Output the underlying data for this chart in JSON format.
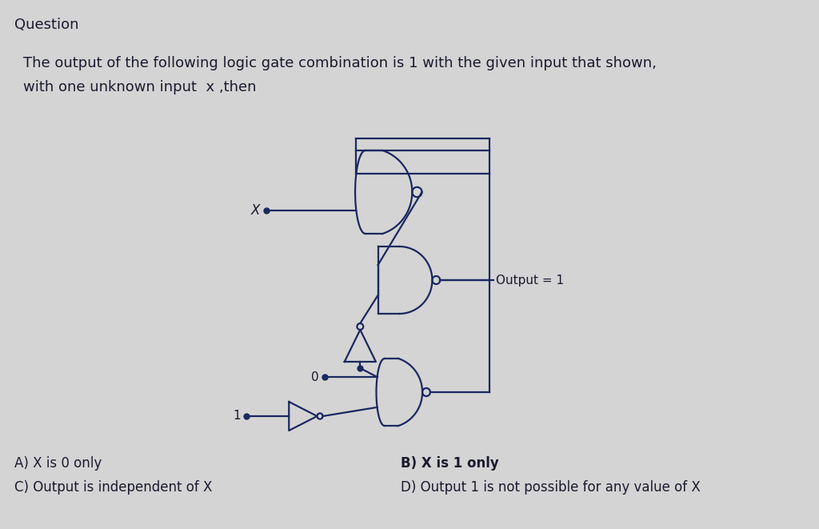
{
  "bg_color": "#d4d4d4",
  "title_text": "Question",
  "question_line1": "The output of the following logic gate combination is 1 with the given input that shown,",
  "question_line2": "with one unknown input  x ,then",
  "answer_A": "A) X is 0 only",
  "answer_B": "B) X is 1 only",
  "answer_C": "C) Output is independent of X",
  "answer_D": "D) Output 1 is not possible for any value of X",
  "gate_color": "#1a2860",
  "text_color": "#1a1a2e",
  "output_label": "Output = 1",
  "input_x_label": "X",
  "input_0_label": "0",
  "input_1_label": "1",
  "lw": 1.6
}
